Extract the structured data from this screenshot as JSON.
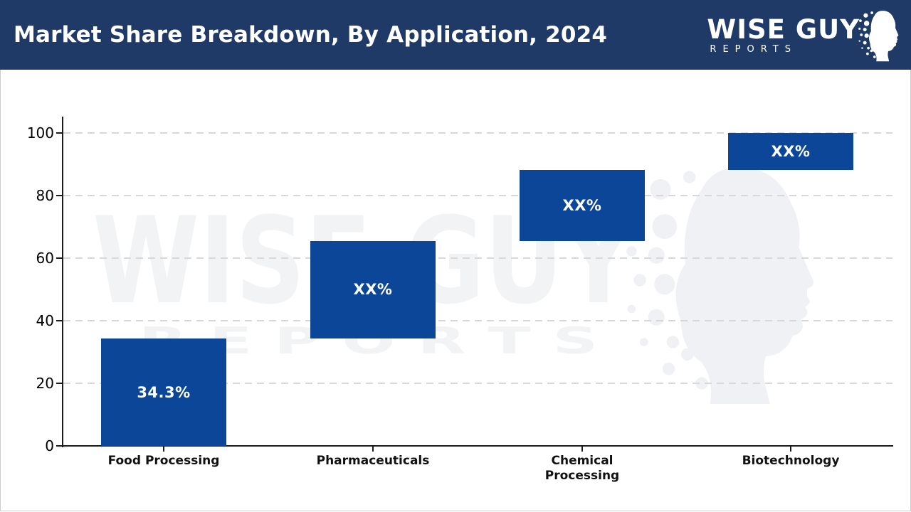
{
  "header": {
    "title": "Market Share Breakdown, By Application, 2024"
  },
  "logo": {
    "line1": "WISE GUY",
    "line2": "REPORTS",
    "head_icon": "head-silhouette-dots"
  },
  "watermark": {
    "line1": "WISE GUY",
    "line2": "R E P O R T S",
    "head_icon": "head-silhouette-dots"
  },
  "colors": {
    "header_bg": "#203a67",
    "bar": "#0b4699",
    "bar_label": "#ffffff",
    "grid": "#d8d8d8",
    "axis": "#1b1b1b",
    "watermark": "#f1f2f5",
    "frame": "#cccccc"
  },
  "chart_data": {
    "type": "bar",
    "subtype": "waterfall",
    "title": "Market Share Breakdown, By Application, 2024",
    "xlabel": "",
    "ylabel": "",
    "ylim": [
      0,
      100
    ],
    "yticks": [
      0,
      20,
      40,
      60,
      80,
      100
    ],
    "grid": "dashed-horizontal",
    "legend": "none",
    "categories": [
      "Food Processing",
      "Pharmaceuticals",
      "Chemical Processing",
      "Biotechnology"
    ],
    "segments": [
      {
        "category": "Food Processing",
        "start": 0,
        "end": 34.3,
        "value": 34.3,
        "label": "34.3%"
      },
      {
        "category": "Pharmaceuticals",
        "start": 34.3,
        "end": 65.5,
        "value": 31.2,
        "label": "XX%"
      },
      {
        "category": "Chemical Processing",
        "start": 65.5,
        "end": 88.2,
        "value": 22.7,
        "label": "XX%"
      },
      {
        "category": "Biotechnology",
        "start": 88.2,
        "end": 100,
        "value": 11.8,
        "label": "XX%"
      }
    ]
  }
}
